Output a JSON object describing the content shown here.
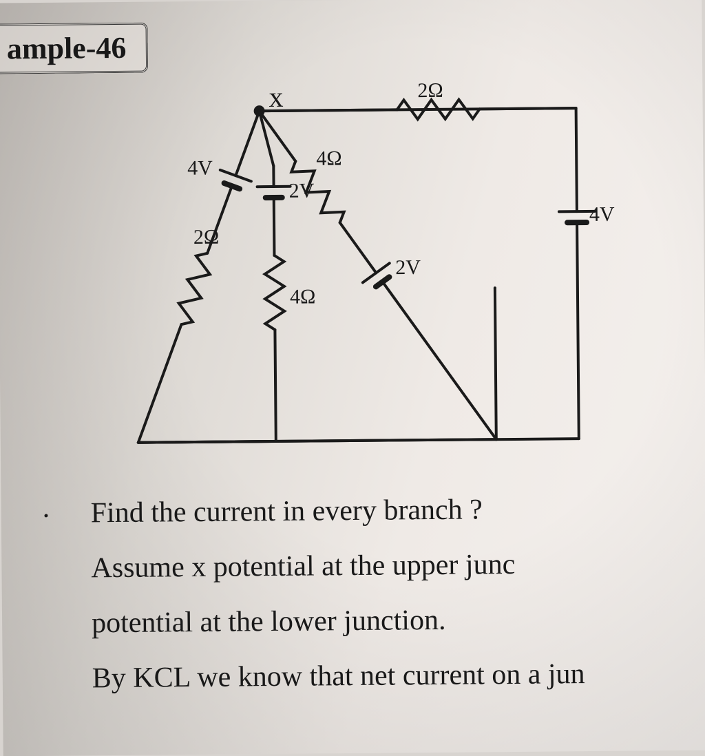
{
  "heading": "ample-46",
  "question": "Find the current in every branch ?",
  "line2": "Assume x potential at the upper junc",
  "line3": "potential at the lower junction.",
  "line4": "By KCL we know that net current on a jun",
  "circuit": {
    "node_label": "x",
    "top_resistor": "2Ω",
    "right_battery": "4V",
    "left_branch": {
      "battery": "4V",
      "resistor": "2Ω"
    },
    "middle_branch": {
      "battery": "2V",
      "resistor": "4Ω"
    },
    "right_diag_branch": {
      "resistor": "4Ω",
      "battery": "2V"
    },
    "stroke": "#1a1a1a",
    "stroke_width": 4
  }
}
